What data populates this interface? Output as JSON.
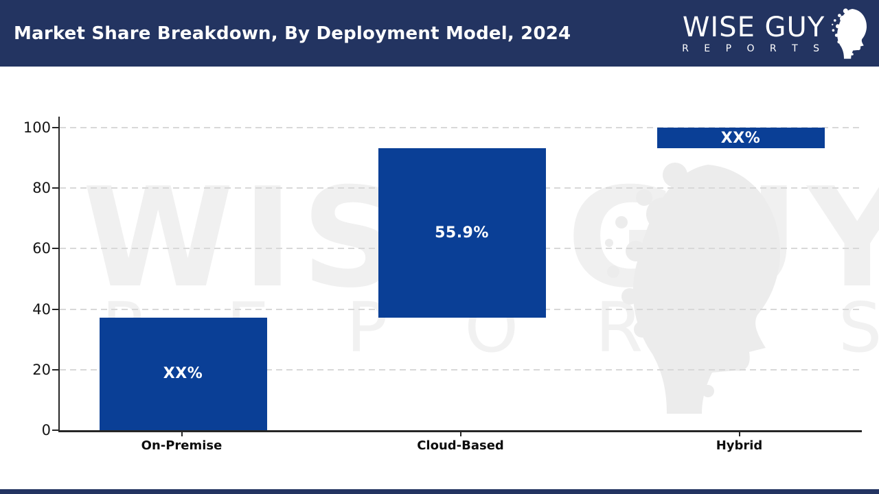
{
  "header": {
    "title": "Market Share Breakdown, By Deployment Model, 2024",
    "bg_color": "#233461",
    "logo": {
      "line1": "WISE GUY",
      "line2": "R E P O R T S",
      "face_icon": "dotted-head-profile-icon"
    }
  },
  "watermark": {
    "line1": "WISE GUY",
    "line2": "R E P O R T S",
    "face_icon": "dotted-head-profile-icon",
    "color": "#f0f0f0"
  },
  "footer": {
    "bg_color": "#233461"
  },
  "chart_data": {
    "type": "bar",
    "variant": "waterfall-segments",
    "title": "Market Share Breakdown, By Deployment Model, 2024",
    "unit": "%",
    "categories": [
      "On-Premise",
      "Cloud-Based",
      "Hybrid"
    ],
    "bars": [
      {
        "category": "On-Premise",
        "start": 0,
        "end": 37.2,
        "label": "XX%"
      },
      {
        "category": "Cloud-Based",
        "start": 37.2,
        "end": 93.1,
        "label": "55.9%"
      },
      {
        "category": "Hybrid",
        "start": 93.1,
        "end": 100,
        "label": "XX%"
      }
    ],
    "xlabel": "",
    "ylabel": "",
    "ylim": [
      0,
      100
    ],
    "yticks": [
      0,
      20,
      40,
      60,
      80,
      100
    ],
    "grid": "horizontal-dashed",
    "grid_color": "#d8d8d8",
    "axis_color": "#262626",
    "bar_color": "#0a3f96",
    "bar_label_color": "#ffffff",
    "legend": "none"
  }
}
